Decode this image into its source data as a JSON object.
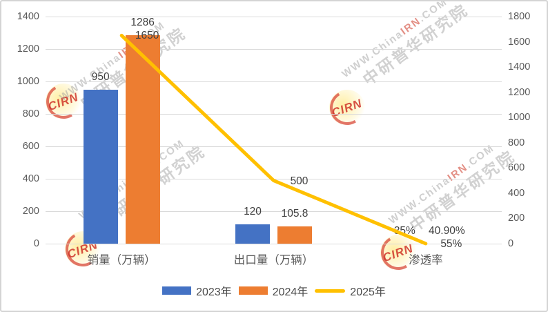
{
  "chart_data": {
    "type": "bar",
    "combo": "grouped bars + line overlay, dual y-axes",
    "title": "",
    "categories": [
      "销量（万辆）",
      "出口量（万辆）",
      "渗透率"
    ],
    "series": [
      {
        "name": "2023年",
        "type": "bar",
        "axis": "left",
        "color": "#4472C4",
        "values": [
          950,
          120,
          0.35
        ],
        "labels": [
          "950",
          "120",
          "35%"
        ]
      },
      {
        "name": "2024年",
        "type": "bar",
        "axis": "left",
        "color": "#ED7D31",
        "values": [
          1286,
          105.8,
          0.409
        ],
        "labels": [
          "1286",
          "105.8",
          "40.90%"
        ]
      },
      {
        "name": "2025年",
        "type": "line",
        "axis": "right",
        "color": "#FFC000",
        "values": [
          1650,
          500,
          0.55
        ],
        "labels": [
          "1650",
          "500",
          "55%"
        ]
      }
    ],
    "left_axis": {
      "min": 0,
      "max": 1400,
      "step": 200,
      "tick_labels": [
        "0",
        "200",
        "400",
        "600",
        "800",
        "1000",
        "1200",
        "1400"
      ]
    },
    "right_axis": {
      "min": 0,
      "max": 1800,
      "step": 200,
      "tick_labels": [
        "0",
        "200",
        "400",
        "600",
        "800",
        "1000",
        "1200",
        "1400",
        "1600",
        "1800"
      ]
    },
    "gridlines": true,
    "grid_color": "#d9d9d9",
    "tick_color": "#595959",
    "label_color": "#404040",
    "legend_position": "bottom"
  },
  "legend": {
    "items": [
      {
        "label": "2023年",
        "color": "#4472C4",
        "marker": "rect"
      },
      {
        "label": "2024年",
        "color": "#ED7D31",
        "marker": "rect"
      },
      {
        "label": "2025年",
        "color": "#FFC000",
        "marker": "line"
      }
    ]
  },
  "watermark": {
    "url_www": "WWW.China",
    "url_irn": "IRN",
    "url_com": ".COM",
    "org": "中研普华研究院",
    "logo": "CIRN"
  }
}
